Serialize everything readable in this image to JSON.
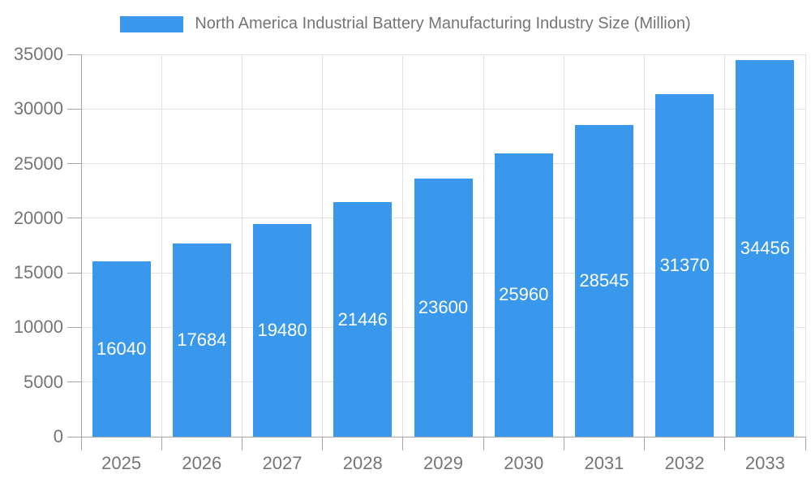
{
  "legend": {
    "label": "North America Industrial Battery Manufacturing Industry Size (Million)"
  },
  "chart_data": {
    "type": "bar",
    "title": "North America Industrial Battery Manufacturing Industry Size (Million)",
    "categories": [
      "2025",
      "2026",
      "2027",
      "2028",
      "2029",
      "2030",
      "2031",
      "2032",
      "2033"
    ],
    "values": [
      16040,
      17684,
      19480,
      21446,
      23600,
      25960,
      28545,
      31370,
      34456
    ],
    "xlabel": "",
    "ylabel": "",
    "ylim": [
      0,
      35000
    ],
    "yticks": [
      0,
      5000,
      10000,
      15000,
      20000,
      25000,
      30000,
      35000
    ],
    "grid": true,
    "legend_position": "top",
    "bar_labels_inside": true
  },
  "colors": {
    "bar": "#3998ec",
    "grid": "#e2e2e2",
    "axis": "#a6a6a6",
    "axis_text": "#757575",
    "bar_label_text": "#ffffff",
    "background": "#ffffff"
  }
}
